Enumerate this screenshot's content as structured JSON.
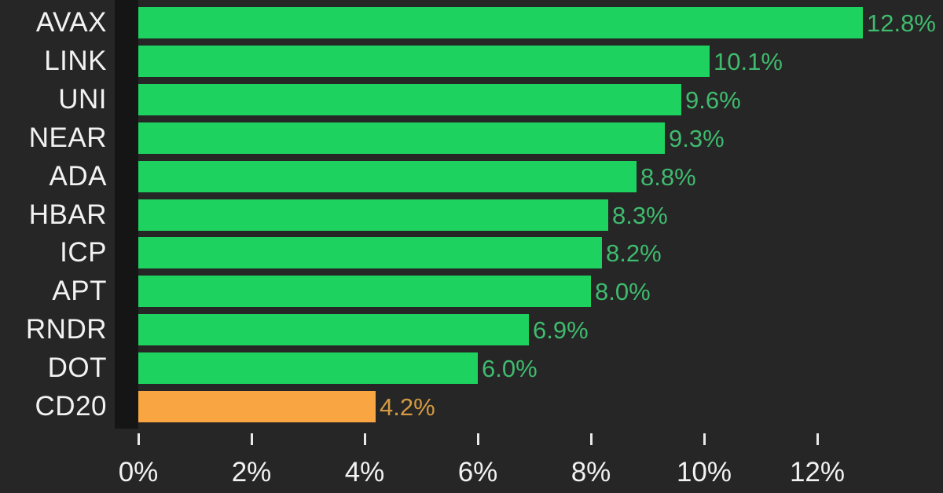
{
  "chart_data": {
    "type": "bar",
    "orientation": "horizontal",
    "title": "",
    "categories": [
      "AVAX",
      "LINK",
      "UNI",
      "NEAR",
      "ADA",
      "HBAR",
      "ICP",
      "APT",
      "RNDR",
      "DOT",
      "CD20"
    ],
    "values": [
      12.8,
      10.1,
      9.6,
      9.3,
      8.8,
      8.3,
      8.2,
      8.0,
      6.9,
      6.0,
      4.2
    ],
    "value_labels": [
      "12.8%",
      "10.1%",
      "9.6%",
      "9.3%",
      "8.8%",
      "8.3%",
      "8.2%",
      "8.0%",
      "6.9%",
      "6.0%",
      "4.2%"
    ],
    "highlight_category": "CD20",
    "x_ticks": [
      "0%",
      "2%",
      "4%",
      "6%",
      "8%",
      "10%",
      "12%"
    ],
    "x_tick_values": [
      0,
      2,
      4,
      6,
      8,
      10,
      12
    ],
    "xlim": [
      0,
      14.2
    ],
    "grid": false,
    "legend": false,
    "colors": {
      "background": "#262626",
      "bar_green": "#1ed25f",
      "bar_orange": "#f9a542",
      "value_text_green": "#3fbb6e",
      "value_text_orange": "#d49a42",
      "category_text": "#f2f2f2",
      "axis_text": "#f2f2f2",
      "tick_mark": "#e9e9e9",
      "axis_band": "#151515"
    }
  }
}
